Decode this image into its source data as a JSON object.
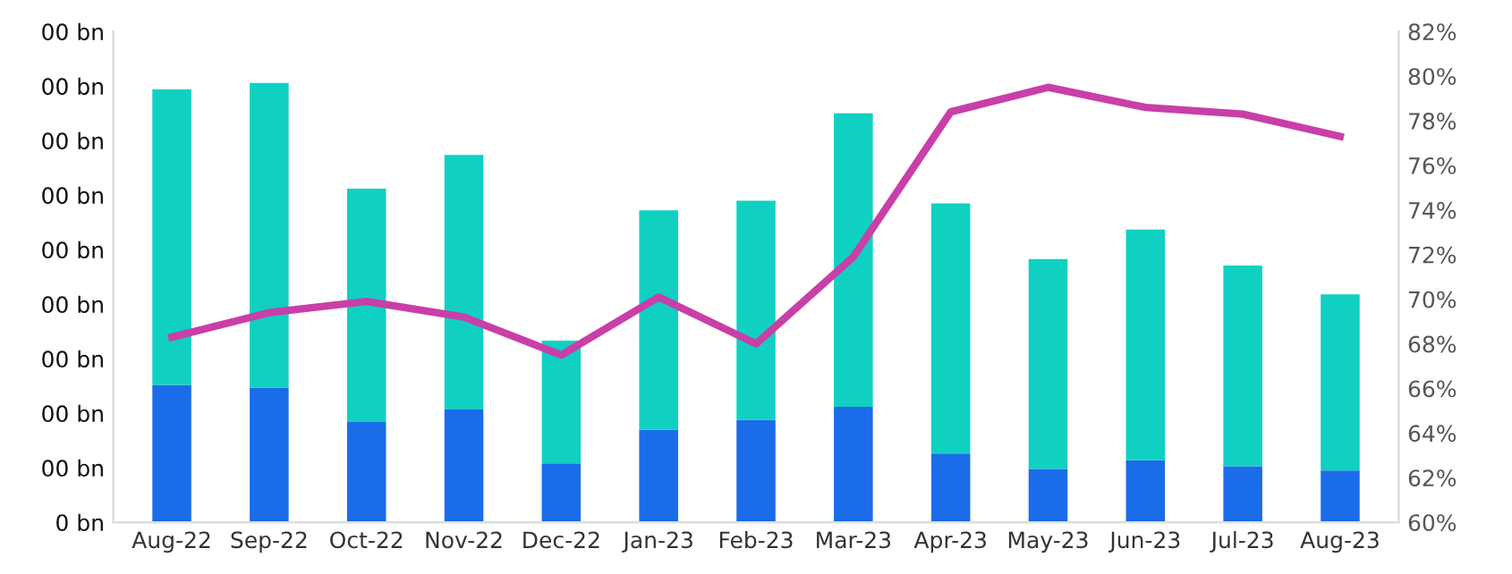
{
  "chart_data": {
    "type": "bar",
    "stacked": true,
    "categories": [
      "Aug-22",
      "Sep-22",
      "Oct-22",
      "Nov-22",
      "Dec-22",
      "Jan-23",
      "Feb-23",
      "Mar-23",
      "Apr-23",
      "May-23",
      "Jun-23",
      "Jul-23",
      "Aug-23"
    ],
    "series": [
      {
        "color": "#1a6ce8",
        "values": [
          252,
          247,
          184,
          207,
          108,
          170,
          188,
          212,
          126,
          98,
          114,
          103,
          95
        ]
      },
      {
        "color": "#10d0c2",
        "values": [
          542,
          559,
          428,
          467,
          225,
          402,
          402,
          538,
          459,
          385,
          423,
          368,
          323
        ]
      },
      {
        "type": "line",
        "axis": "y2",
        "color": "#c83fa8",
        "values": [
          68.3,
          69.4,
          69.9,
          69.2,
          67.5,
          70.1,
          68.0,
          71.9,
          78.4,
          79.5,
          78.6,
          78.3,
          77.3
        ]
      }
    ],
    "ylim": [
      0,
      900
    ],
    "yticks": [
      {
        "value": 0,
        "label": "0 bn"
      },
      {
        "value": 100,
        "label": "00 bn"
      },
      {
        "value": 200,
        "label": "00 bn"
      },
      {
        "value": 300,
        "label": "00 bn"
      },
      {
        "value": 400,
        "label": "00 bn"
      },
      {
        "value": 500,
        "label": "00 bn"
      },
      {
        "value": 600,
        "label": "00 bn"
      },
      {
        "value": 700,
        "label": "00 bn"
      },
      {
        "value": 800,
        "label": "00 bn"
      },
      {
        "value": 900,
        "label": "00 bn"
      }
    ],
    "y2lim": [
      60,
      82
    ],
    "y2ticks": [
      {
        "value": 60,
        "label": "60%"
      },
      {
        "value": 62,
        "label": "62%"
      },
      {
        "value": 64,
        "label": "64%"
      },
      {
        "value": 66,
        "label": "66%"
      },
      {
        "value": 68,
        "label": "68%"
      },
      {
        "value": 70,
        "label": "70%"
      },
      {
        "value": 72,
        "label": "72%"
      },
      {
        "value": 74,
        "label": "74%"
      },
      {
        "value": 76,
        "label": "76%"
      },
      {
        "value": 78,
        "label": "78%"
      },
      {
        "value": 80,
        "label": "80%"
      },
      {
        "value": 82,
        "label": "82%"
      }
    ],
    "grid": false,
    "legend": false,
    "marker": "none",
    "line_style": "solid"
  }
}
